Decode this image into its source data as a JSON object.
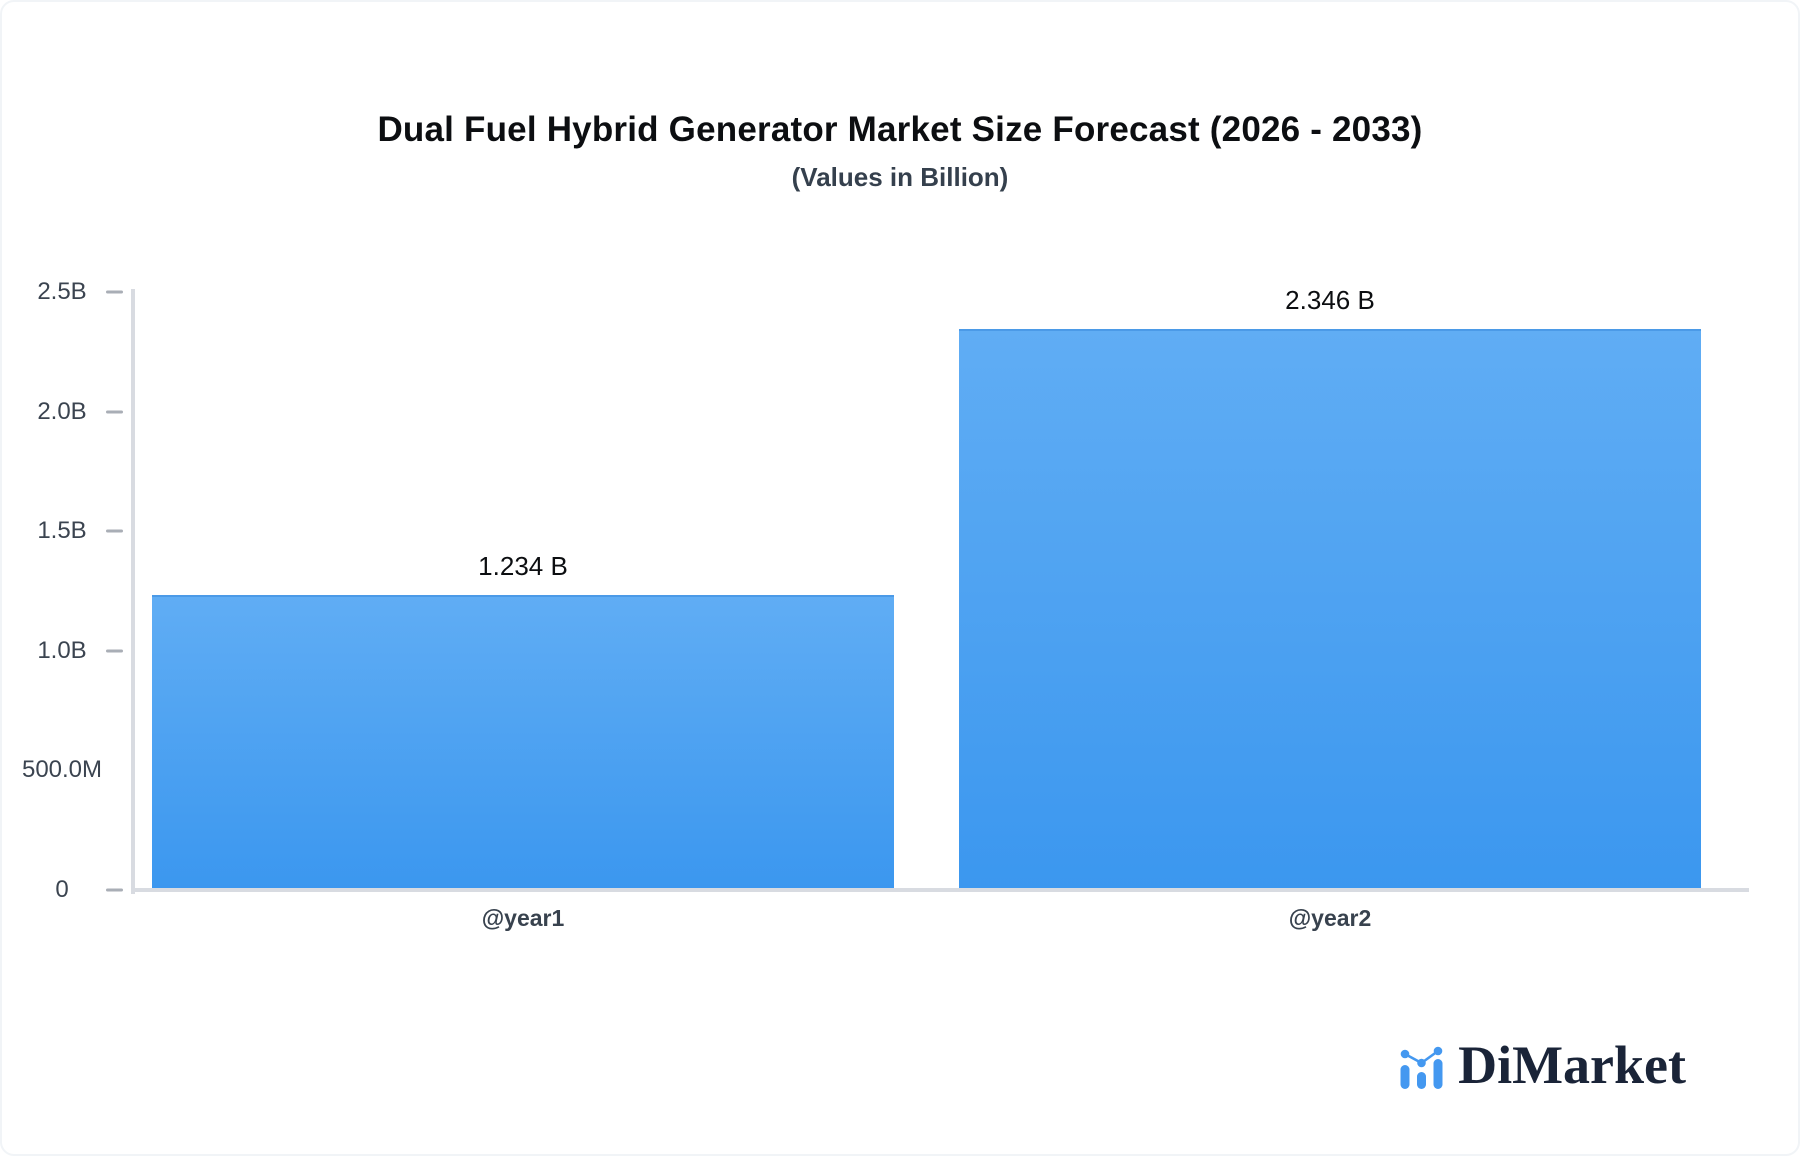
{
  "chart_data": {
    "type": "bar",
    "title": "Dual Fuel Hybrid Generator Market Size Forecast (2026 - 2033)",
    "subtitle": "(Values in Billion)",
    "categories": [
      "@year1",
      "@year2"
    ],
    "values": [
      1.234,
      2.346
    ],
    "value_labels": [
      "1.234 B",
      "2.346 B"
    ],
    "value_unit": "billion",
    "ylim": [
      0,
      2.5
    ],
    "y_ticks": [
      {
        "label": "2.5B",
        "value": 2.5,
        "dash": true
      },
      {
        "label": "2.0B",
        "value": 2.0,
        "dash": true
      },
      {
        "label": "1.5B",
        "value": 1.5,
        "dash": true
      },
      {
        "label": "1.0B",
        "value": 1.0,
        "dash": true
      },
      {
        "label": "500.0M",
        "value": 0.5,
        "dash": false
      },
      {
        "label": "0",
        "value": 0,
        "dash": true
      }
    ],
    "grid": false,
    "legend": "none",
    "colors": {
      "bar_gradient_top": "#60adf4",
      "bar_gradient_bottom": "#3b97ef",
      "axis_line": "#d8dbe1",
      "tick_mark": "#a9aeb6",
      "tick_label": "#3b4450",
      "category_label": "#38424e",
      "value_label": "#0c0e11",
      "title": "#0c0e11",
      "subtitle": "#35404d"
    }
  },
  "branding": {
    "name": "DiMarket",
    "text_color": "#1a2438",
    "icon_color": "#4498f0",
    "icon": "bar-chart-with-trendline-icon"
  }
}
